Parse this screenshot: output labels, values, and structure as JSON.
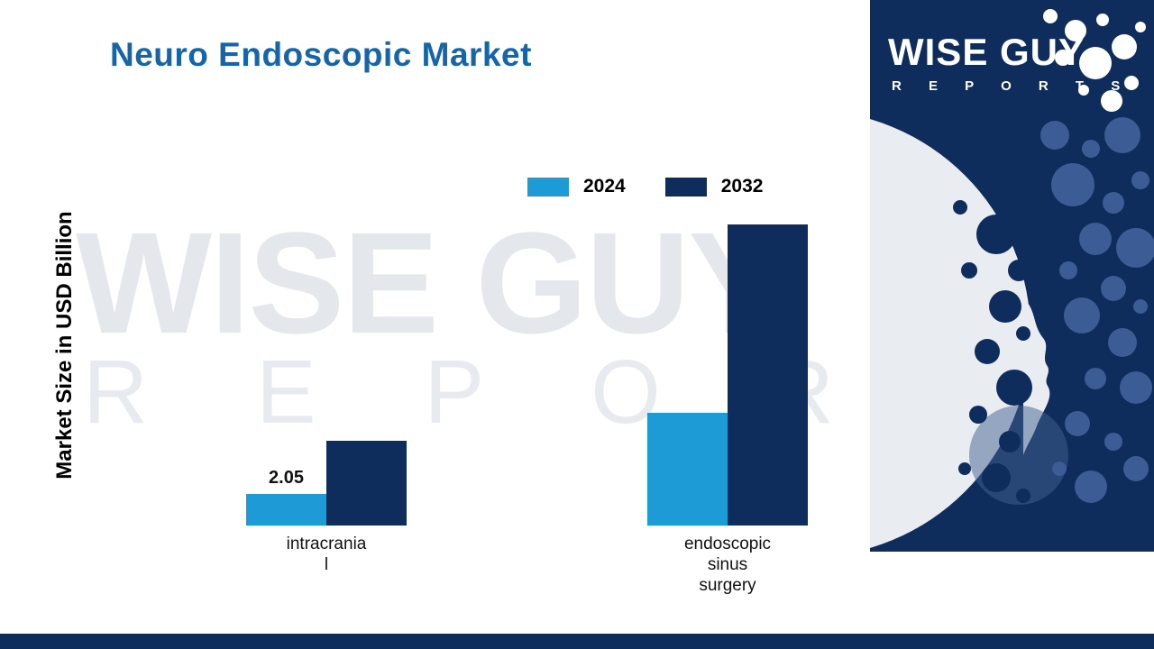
{
  "header": {
    "title": "Neuro Endoscopic Market"
  },
  "brand": {
    "line1": "WISE GUY",
    "line2": "R E P O R T S"
  },
  "watermark": {
    "line1": "WISE GUY",
    "line2": "R E P O R T S"
  },
  "chart_data": {
    "type": "bar",
    "title": "Neuro Endoscopic Market",
    "ylabel": "Market Size in USD Billion",
    "xlabel": "",
    "categories": [
      "intracranial",
      "endoscopic sinus surgery"
    ],
    "x_tick_lines": [
      [
        "intracrania",
        "l"
      ],
      [
        "endoscopic",
        "sinus",
        "surgery"
      ]
    ],
    "series": [
      {
        "name": "2024",
        "color": "#1d9bd7",
        "values": [
          2.05,
          7.2
        ]
      },
      {
        "name": "2032",
        "color": "#0e2c5c",
        "values": [
          5.45,
          19.3
        ]
      }
    ],
    "bar_labels": [
      {
        "series": "2024",
        "category": "intracranial",
        "text": "2.05"
      }
    ],
    "ylim": [
      0,
      20
    ],
    "grid": false,
    "legend_position": "top-center"
  },
  "colors": {
    "title_blue": "#1565a8",
    "accent_light_blue": "#1d9bd7",
    "navy": "#0e2c5c",
    "watermark_gray": "#cfd6de",
    "panel_circle": "#e9ecf0"
  }
}
